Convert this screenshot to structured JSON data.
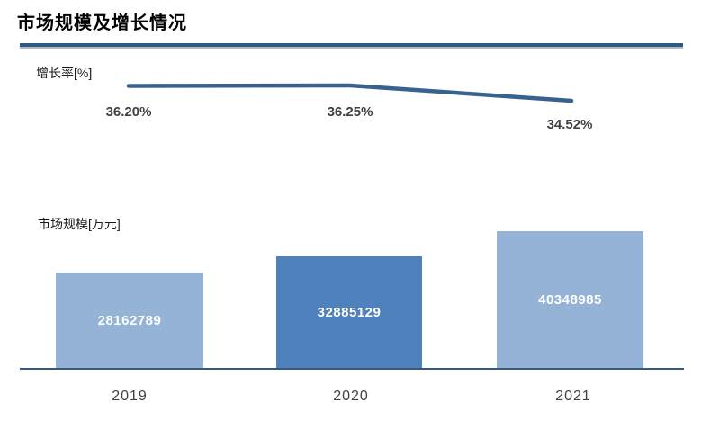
{
  "title": "市场规模及增长情况",
  "growth": {
    "axis_label": "增长率[%]",
    "point_labels": [
      "36.20%",
      "36.25%",
      "34.52%"
    ]
  },
  "market": {
    "axis_label": "市场规模[万元]",
    "value_labels": [
      "28162789",
      "32885129",
      "40348985"
    ],
    "years": [
      "2019",
      "2020",
      "2021"
    ]
  },
  "colors": {
    "accent_dark": "#2e5984",
    "line": "#38618f",
    "bar_light": "#95b3d7",
    "bar_dark": "#4f81bd",
    "axis": "#35597f",
    "label_text": "#404040",
    "bar_value_text": "#ffffff"
  },
  "chart_data": [
    {
      "type": "line",
      "title": "增长率[%]",
      "x": [
        "2019",
        "2020",
        "2021"
      ],
      "values": [
        36.2,
        36.25,
        34.52
      ],
      "data_labels": [
        "36.20%",
        "36.25%",
        "34.52%"
      ],
      "unit": "%",
      "legend_position": "none",
      "axes_visible": false,
      "line_color": "#38618f"
    },
    {
      "type": "bar",
      "title": "市场规模[万元]",
      "categories": [
        "2019",
        "2020",
        "2021"
      ],
      "values": [
        28162789,
        32885129,
        40348985
      ],
      "data_labels": [
        "28162789",
        "32885129",
        "40348985"
      ],
      "unit": "万元",
      "ylim": [
        0,
        40348985
      ],
      "grid": false,
      "legend_position": "none",
      "bar_colors": [
        "#95b3d7",
        "#4f81bd",
        "#95b3d7"
      ]
    }
  ]
}
